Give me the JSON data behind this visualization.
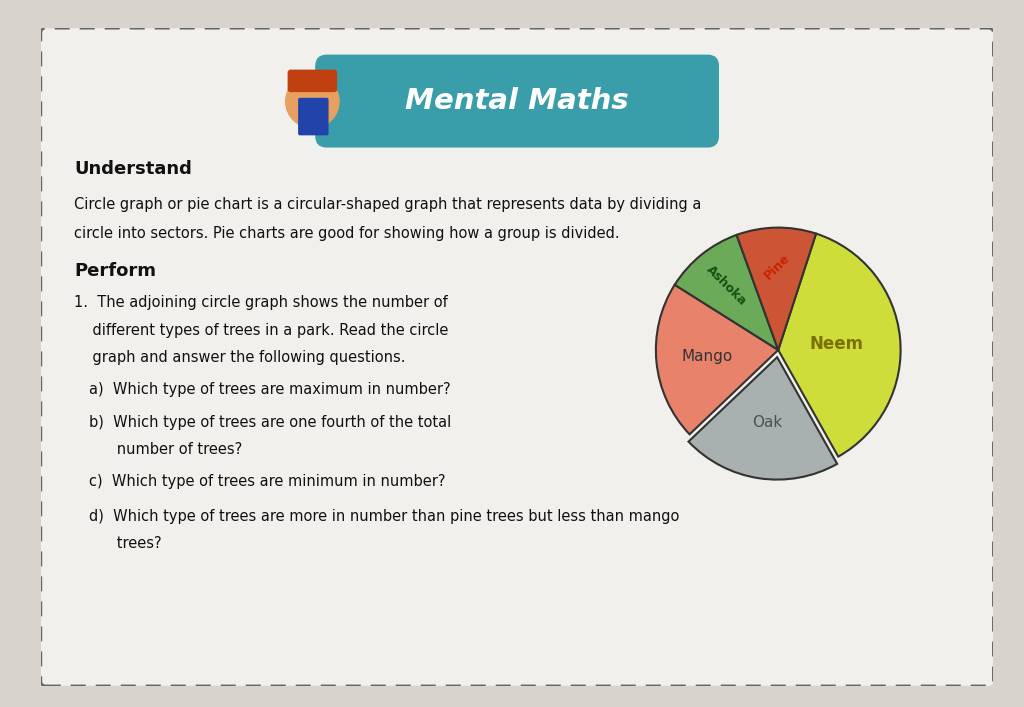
{
  "title": "Mental Maths",
  "title_bg_color": "#3a9eaa",
  "title_text_color": "#ffffff",
  "background_color": "#f2f0ec",
  "page_bg": "#d8d4cc",
  "understand_text": "Understand",
  "description_line1": "Circle graph or pie chart is a circular-shaped graph that represents data by dividing a",
  "description_line2": "circle into sectors. Pie charts are good for showing how a group is divided.",
  "perform_text": "Perform",
  "q_intro_line1": "1.  The adjoining circle graph shows the number of",
  "q_intro_line2": "    different types of trees in a park. Read the circle",
  "q_intro_line3": "    graph and answer the following questions.",
  "qa": "a)  Which type of trees are maximum in number?",
  "qb1": "b)  Which type of trees are one fourth of the total",
  "qb2": "      number of trees?",
  "qc": "c)  Which type of trees are minimum in number?",
  "qd1": "d)  Which type of trees are more in number than pine trees but less than mango",
  "qd2": "      trees?",
  "pie_labels": [
    "Neem",
    "Oak",
    "Mango",
    "Ashoka",
    "Pine"
  ],
  "pie_sizes": [
    35,
    20,
    20,
    10,
    10
  ],
  "pie_colors": [
    "#cedd3a",
    "#a8b0b0",
    "#e8826a",
    "#6aaa58",
    "#cc5535"
  ],
  "pie_startangle": 72,
  "explode": [
    0,
    0.06,
    0,
    0,
    0
  ],
  "dashed_border_color": "#666666",
  "label_specs": [
    {
      "label": "Neem",
      "r": 0.48,
      "color": "#7a7000",
      "fontsize": 12,
      "fontweight": "bold",
      "rotation": 0
    },
    {
      "label": "Oak",
      "r": 0.6,
      "color": "#505050",
      "fontsize": 11,
      "fontweight": "normal",
      "rotation": 0
    },
    {
      "label": "Mango",
      "r": 0.58,
      "color": "#333333",
      "fontsize": 11,
      "fontweight": "normal",
      "rotation": 0
    },
    {
      "label": "Ashoka",
      "r": 0.68,
      "color": "#1a5010",
      "fontsize": 9,
      "fontweight": "bold",
      "rotation": -45
    },
    {
      "label": "Pine",
      "r": 0.68,
      "color": "#cc2200",
      "fontsize": 9,
      "fontweight": "bold",
      "rotation": 45
    }
  ]
}
